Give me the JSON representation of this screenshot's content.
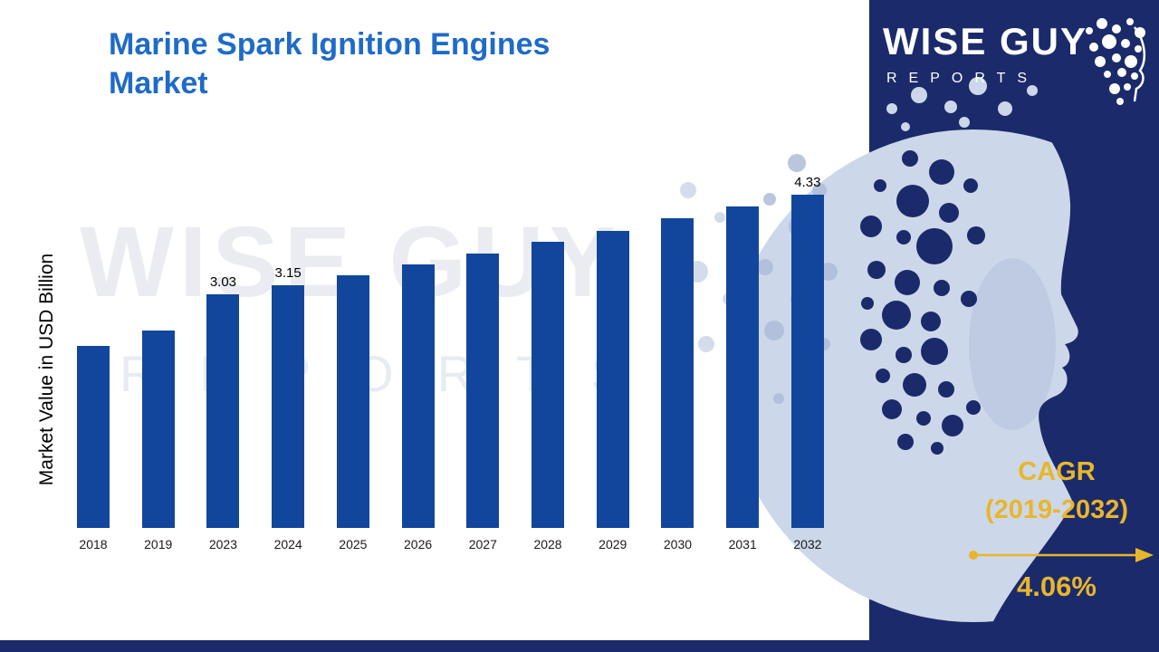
{
  "title": "Marine Spark Ignition Engines Market",
  "ylabel": "Market Value in USD Billion",
  "watermark": {
    "line1": "WISE GUY",
    "line2": "REPORTS"
  },
  "logo": {
    "main": "WISE GUY",
    "sub": "REPORTS"
  },
  "cagr": {
    "label": "CAGR",
    "range": "(2019-2032)",
    "value": "4.06%"
  },
  "colors": {
    "bar": "#11469c",
    "panel": "#1b2a6a",
    "gold": "#e8b62c",
    "title_blue": "#1e6bc8",
    "circle": "#ccd7e9",
    "watermark": "#d9dee8"
  },
  "chart_data": {
    "type": "bar",
    "title": "Marine Spark Ignition Engines Market",
    "xlabel": "",
    "ylabel": "Market Value in USD Billion",
    "categories": [
      "2018",
      "2019",
      "2023",
      "2024",
      "2025",
      "2026",
      "2027",
      "2028",
      "2029",
      "2030",
      "2031",
      "2032"
    ],
    "values": [
      2.36,
      2.57,
      3.03,
      3.15,
      3.28,
      3.42,
      3.56,
      3.72,
      3.86,
      4.02,
      4.18,
      4.33
    ],
    "data_labels": {
      "2023": "3.03",
      "2024": "3.15",
      "2032": "4.33"
    },
    "ylim": [
      0,
      5
    ],
    "grid": false,
    "legend": false,
    "bar_color": "#11469c"
  }
}
